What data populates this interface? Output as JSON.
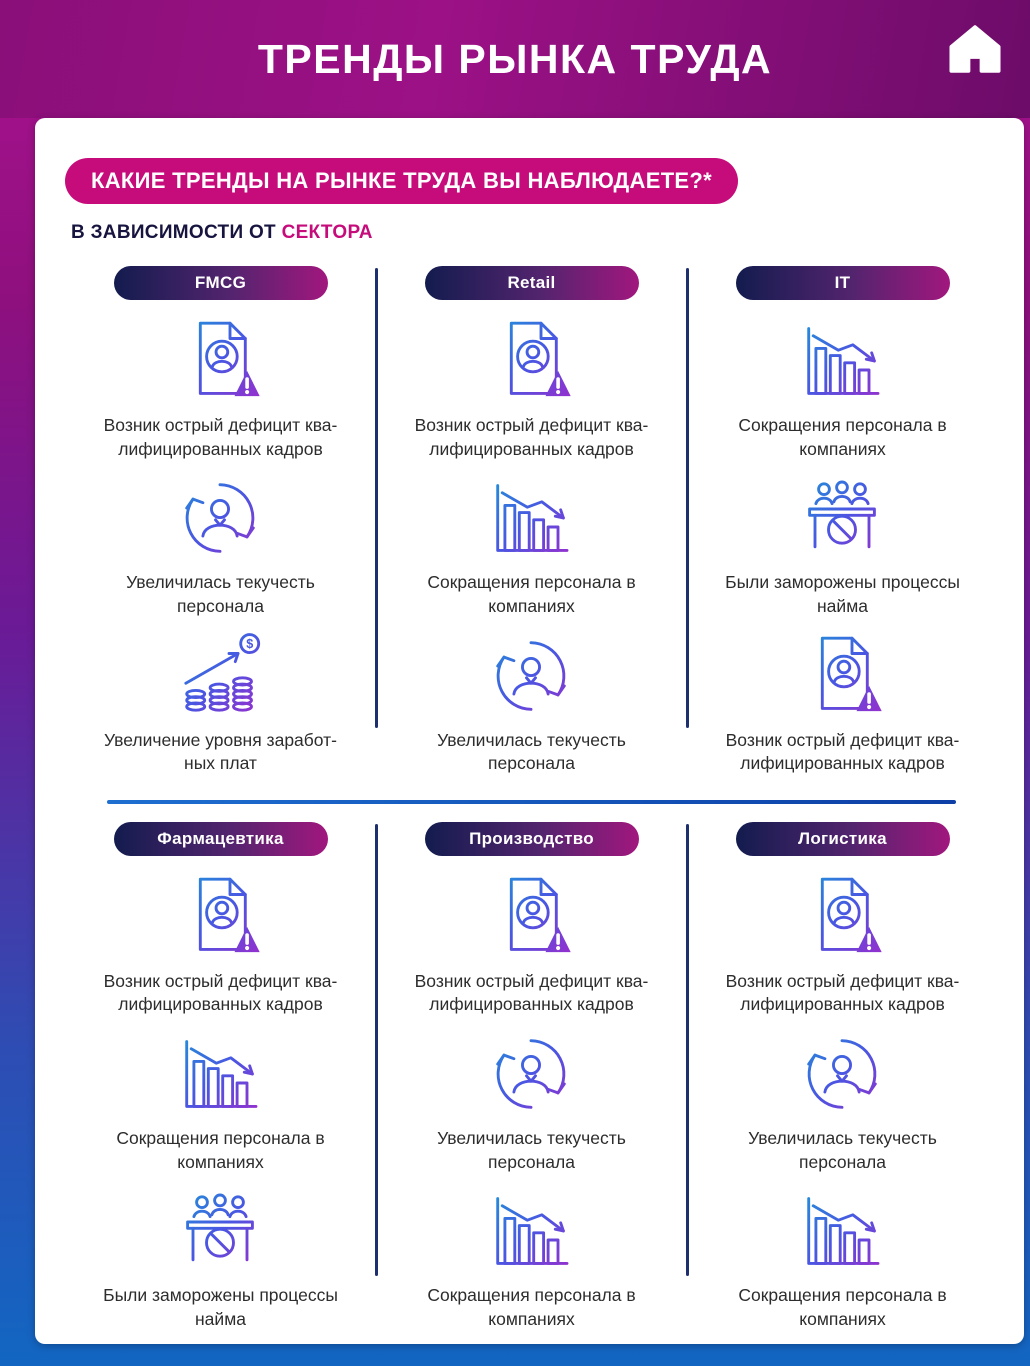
{
  "page": {
    "title": "ТРЕНДЫ РЫНКА ТРУДА",
    "question": "КАКИЕ ТРЕНДЫ НА РЫНКЕ ТРУДА ВЫ НАБЛЮДАЕТЕ?*",
    "subtitle_prefix": "В ЗАВИСИМОСТИ ОТ",
    "subtitle_accent": "СЕКТОРА",
    "home_icon": "home-icon"
  },
  "colors": {
    "accent_magenta": "#c60c7b",
    "navy_divider": "#1d2f6e",
    "blue_divider": "#1e6fd0",
    "pill_gradient_start": "#131c4e",
    "pill_gradient_end": "#a1177e",
    "icon_blue": "#1a9ad7",
    "icon_violet": "#a428c9",
    "banner_purple": "#8a0f79"
  },
  "sectors": [
    {
      "label": "FMCG",
      "items": [
        {
          "icon": "staff-deficit",
          "text": "Возник острый дефицит ква-\nлифицированных кадров"
        },
        {
          "icon": "staff-turnover",
          "text": "Увеличилась текучесть\nперсонала"
        },
        {
          "icon": "salary-increase",
          "text": "Увеличение уровня заработ-\nных плат"
        }
      ]
    },
    {
      "label": "Retail",
      "items": [
        {
          "icon": "staff-deficit",
          "text": "Возник острый дефицит ква-\nлифицированных кадров"
        },
        {
          "icon": "staff-reduction",
          "text": "Сокращения персонала в\nкомпаниях"
        },
        {
          "icon": "staff-turnover",
          "text": "Увеличилась текучесть\nперсонала"
        }
      ]
    },
    {
      "label": "IT",
      "items": [
        {
          "icon": "staff-reduction",
          "text": "Сокращения персонала в\nкомпаниях"
        },
        {
          "icon": "hiring-freeze",
          "text": "Были заморожены процессы\nнайма"
        },
        {
          "icon": "staff-deficit",
          "text": "Возник острый дефицит ква-\nлифицированных кадров"
        }
      ]
    },
    {
      "label": "Фармацевтика",
      "items": [
        {
          "icon": "staff-deficit",
          "text": "Возник острый дефицит ква-\nлифицированных кадров"
        },
        {
          "icon": "staff-reduction",
          "text": "Сокращения персонала в\nкомпаниях"
        },
        {
          "icon": "hiring-freeze",
          "text": "Были заморожены процессы\nнайма"
        }
      ]
    },
    {
      "label": "Производство",
      "items": [
        {
          "icon": "staff-deficit",
          "text": "Возник острый дефицит ква-\nлифицированных кадров"
        },
        {
          "icon": "staff-turnover",
          "text": "Увеличилась текучесть\nперсонала"
        },
        {
          "icon": "staff-reduction",
          "text": "Сокращения персонала в\nкомпаниях"
        }
      ]
    },
    {
      "label": "Логистика",
      "items": [
        {
          "icon": "staff-deficit",
          "text": "Возник острый дефицит ква-\nлифицированных кадров"
        },
        {
          "icon": "staff-turnover",
          "text": "Увеличилась текучесть\nперсонала"
        },
        {
          "icon": "staff-reduction",
          "text": "Сокращения персонала в\nкомпаниях"
        }
      ]
    }
  ]
}
